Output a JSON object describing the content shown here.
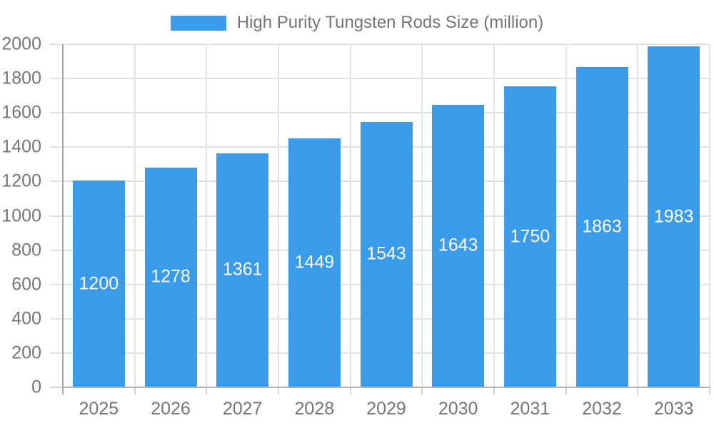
{
  "legend": {
    "label": "High Purity Tungsten Rods Size (million)"
  },
  "chart_data": {
    "type": "bar",
    "title": "High Purity Tungsten Rods Size (million)",
    "categories": [
      "2025",
      "2026",
      "2027",
      "2028",
      "2029",
      "2030",
      "2031",
      "2032",
      "2033"
    ],
    "series": [
      {
        "name": "High Purity Tungsten Rods Size (million)",
        "values": [
          1200,
          1278,
          1361,
          1449,
          1543,
          1643,
          1750,
          1863,
          1983
        ]
      }
    ],
    "data_labels": [
      "1200",
      "1278",
      "1361",
      "1449",
      "1543",
      "1643",
      "1750",
      "1863",
      "1983"
    ],
    "xlabel": "",
    "ylabel": "",
    "ylim": [
      0,
      2000
    ],
    "ytick_step": 200,
    "ytick_labels": [
      "0",
      "200",
      "400",
      "600",
      "800",
      "1000",
      "1200",
      "1400",
      "1600",
      "1800",
      "2000"
    ],
    "grid": true,
    "legend_position": "top-center",
    "colors": {
      "bar": "#3b9beb",
      "bar_value_label": "#ffffff",
      "axis_text": "#757575",
      "gridline": "#e2e2e2",
      "y_axis_line": "#a3a3a3",
      "x_axis_line": "#b3b3b3"
    }
  }
}
